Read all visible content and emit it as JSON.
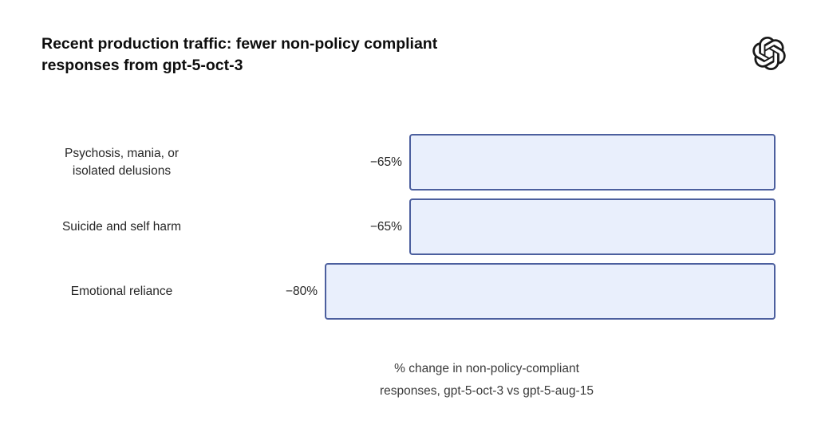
{
  "title": {
    "lines": [
      "Recent production traffic: fewer non-policy compliant",
      "responses from gpt-5-oct-3"
    ]
  },
  "logo": {
    "name": "openai-logo"
  },
  "chart_data": {
    "type": "bar",
    "orientation": "horizontal",
    "title": "Recent production traffic: fewer non-policy compliant responses from gpt-5-oct-3",
    "categories": [
      "Psychosis, mania, or isolated delusions",
      "Suicide and self harm",
      "Emotional reliance"
    ],
    "category_lines": [
      [
        "Psychosis, mania, or",
        "isolated delusions"
      ],
      [
        "Suicide and self harm"
      ],
      [
        "Emotional reliance"
      ]
    ],
    "values": [
      -65,
      -65,
      -80
    ],
    "bar_labels": [
      "−65%",
      "−65%",
      "−80%"
    ],
    "xlabel": "% change in non-policy-compliant responses, gpt-5-oct-3 vs gpt-5-aug-15",
    "xlabel_lines": [
      "% change in non-policy-compliant",
      "responses, gpt-5-oct-3 vs gpt-5-aug-15"
    ],
    "xlim": [
      -85,
      0
    ],
    "bars_anchor": "right",
    "grid": false,
    "legend": "none",
    "bar_fill": "#e9effc",
    "bar_border": "#4c5f9e"
  }
}
